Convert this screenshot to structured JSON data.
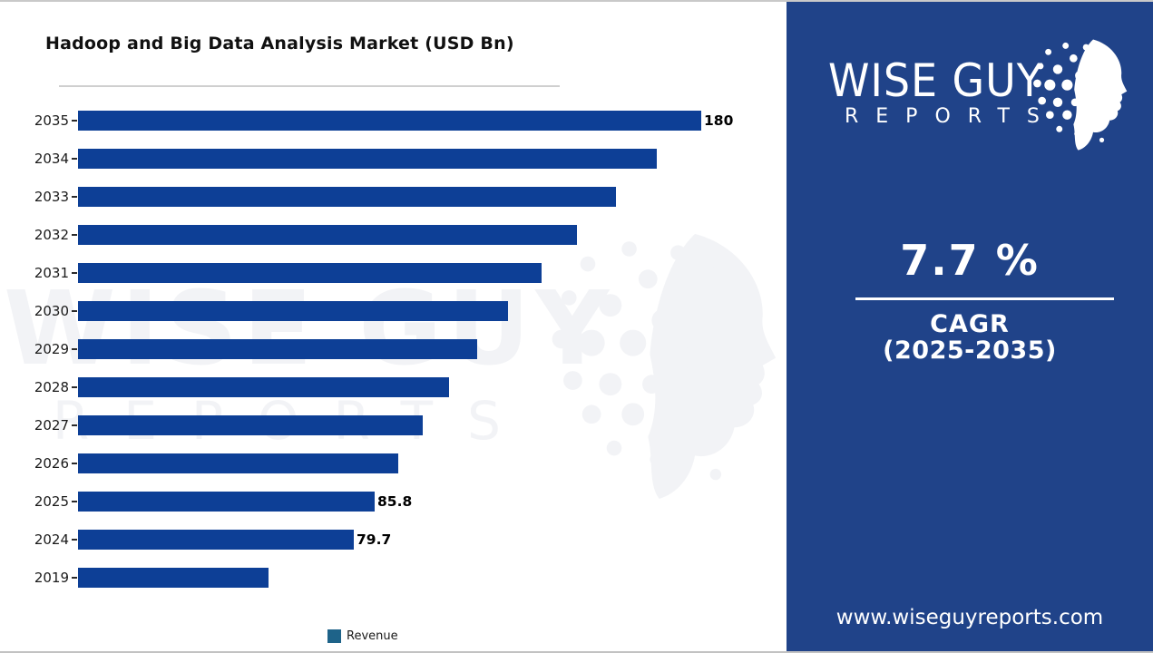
{
  "chart_data": {
    "type": "bar",
    "orientation": "horizontal",
    "title": "Hadoop and Big Data Analysis Market (USD Bn)",
    "categories": [
      "2035",
      "2034",
      "2033",
      "2032",
      "2031",
      "2030",
      "2029",
      "2028",
      "2027",
      "2026",
      "2025",
      "2024",
      "2019"
    ],
    "values": [
      180,
      167.2,
      155.3,
      144.2,
      133.9,
      124.3,
      115.4,
      107.2,
      99.5,
      92.4,
      85.8,
      79.7,
      55
    ],
    "value_labels": [
      "180",
      "",
      "",
      "",
      "",
      "",
      "",
      "",
      "",
      "",
      "85.8",
      "79.7",
      ""
    ],
    "xlabel": "",
    "ylabel": "",
    "xlim": [
      0,
      180
    ],
    "grid": false,
    "bar_color": "#0d3f96",
    "legend": {
      "label": "Revenue",
      "color": "#1e6389",
      "position": "bottom-center"
    }
  },
  "watermark": {
    "line1": "WISE GUY",
    "line2": "REPORTS"
  },
  "sidebar": {
    "bg_color": "#204389",
    "logo": {
      "line1": "WISE GUY",
      "line2": "REPORTS"
    },
    "cagr": {
      "value": "7.7 %",
      "label": "CAGR",
      "range": "(2025-2035)"
    },
    "website": "www.wiseguyreports.com"
  }
}
